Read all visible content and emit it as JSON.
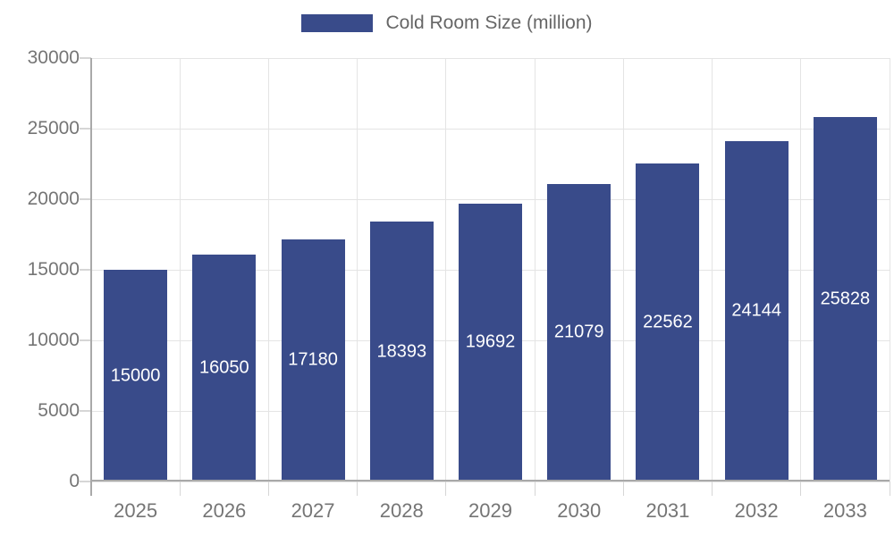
{
  "chart_data": {
    "type": "bar",
    "title": "Cold Room Size (million)",
    "legend": "Cold Room Size (million)",
    "legend_position": "top",
    "categories": [
      "2025",
      "2026",
      "2027",
      "2028",
      "2029",
      "2030",
      "2031",
      "2032",
      "2033"
    ],
    "values": [
      15000,
      16050,
      17180,
      18393,
      19692,
      21079,
      22562,
      24144,
      25828
    ],
    "xlabel": "",
    "ylabel": "",
    "ylim": [
      0,
      30000
    ],
    "yticks": [
      "0",
      "5000",
      "10000",
      "15000",
      "20000",
      "25000",
      "30000"
    ],
    "grid": true,
    "colors": {
      "bar": "#394B8A",
      "axis_line": "#A9A9A9",
      "gridline": "#E4E4E4",
      "tick": "#D6D6D6",
      "axis_label": "#757575",
      "legend_text": "#666666",
      "value_label": "#FFFFFF",
      "background": "#FFFFFF"
    }
  }
}
